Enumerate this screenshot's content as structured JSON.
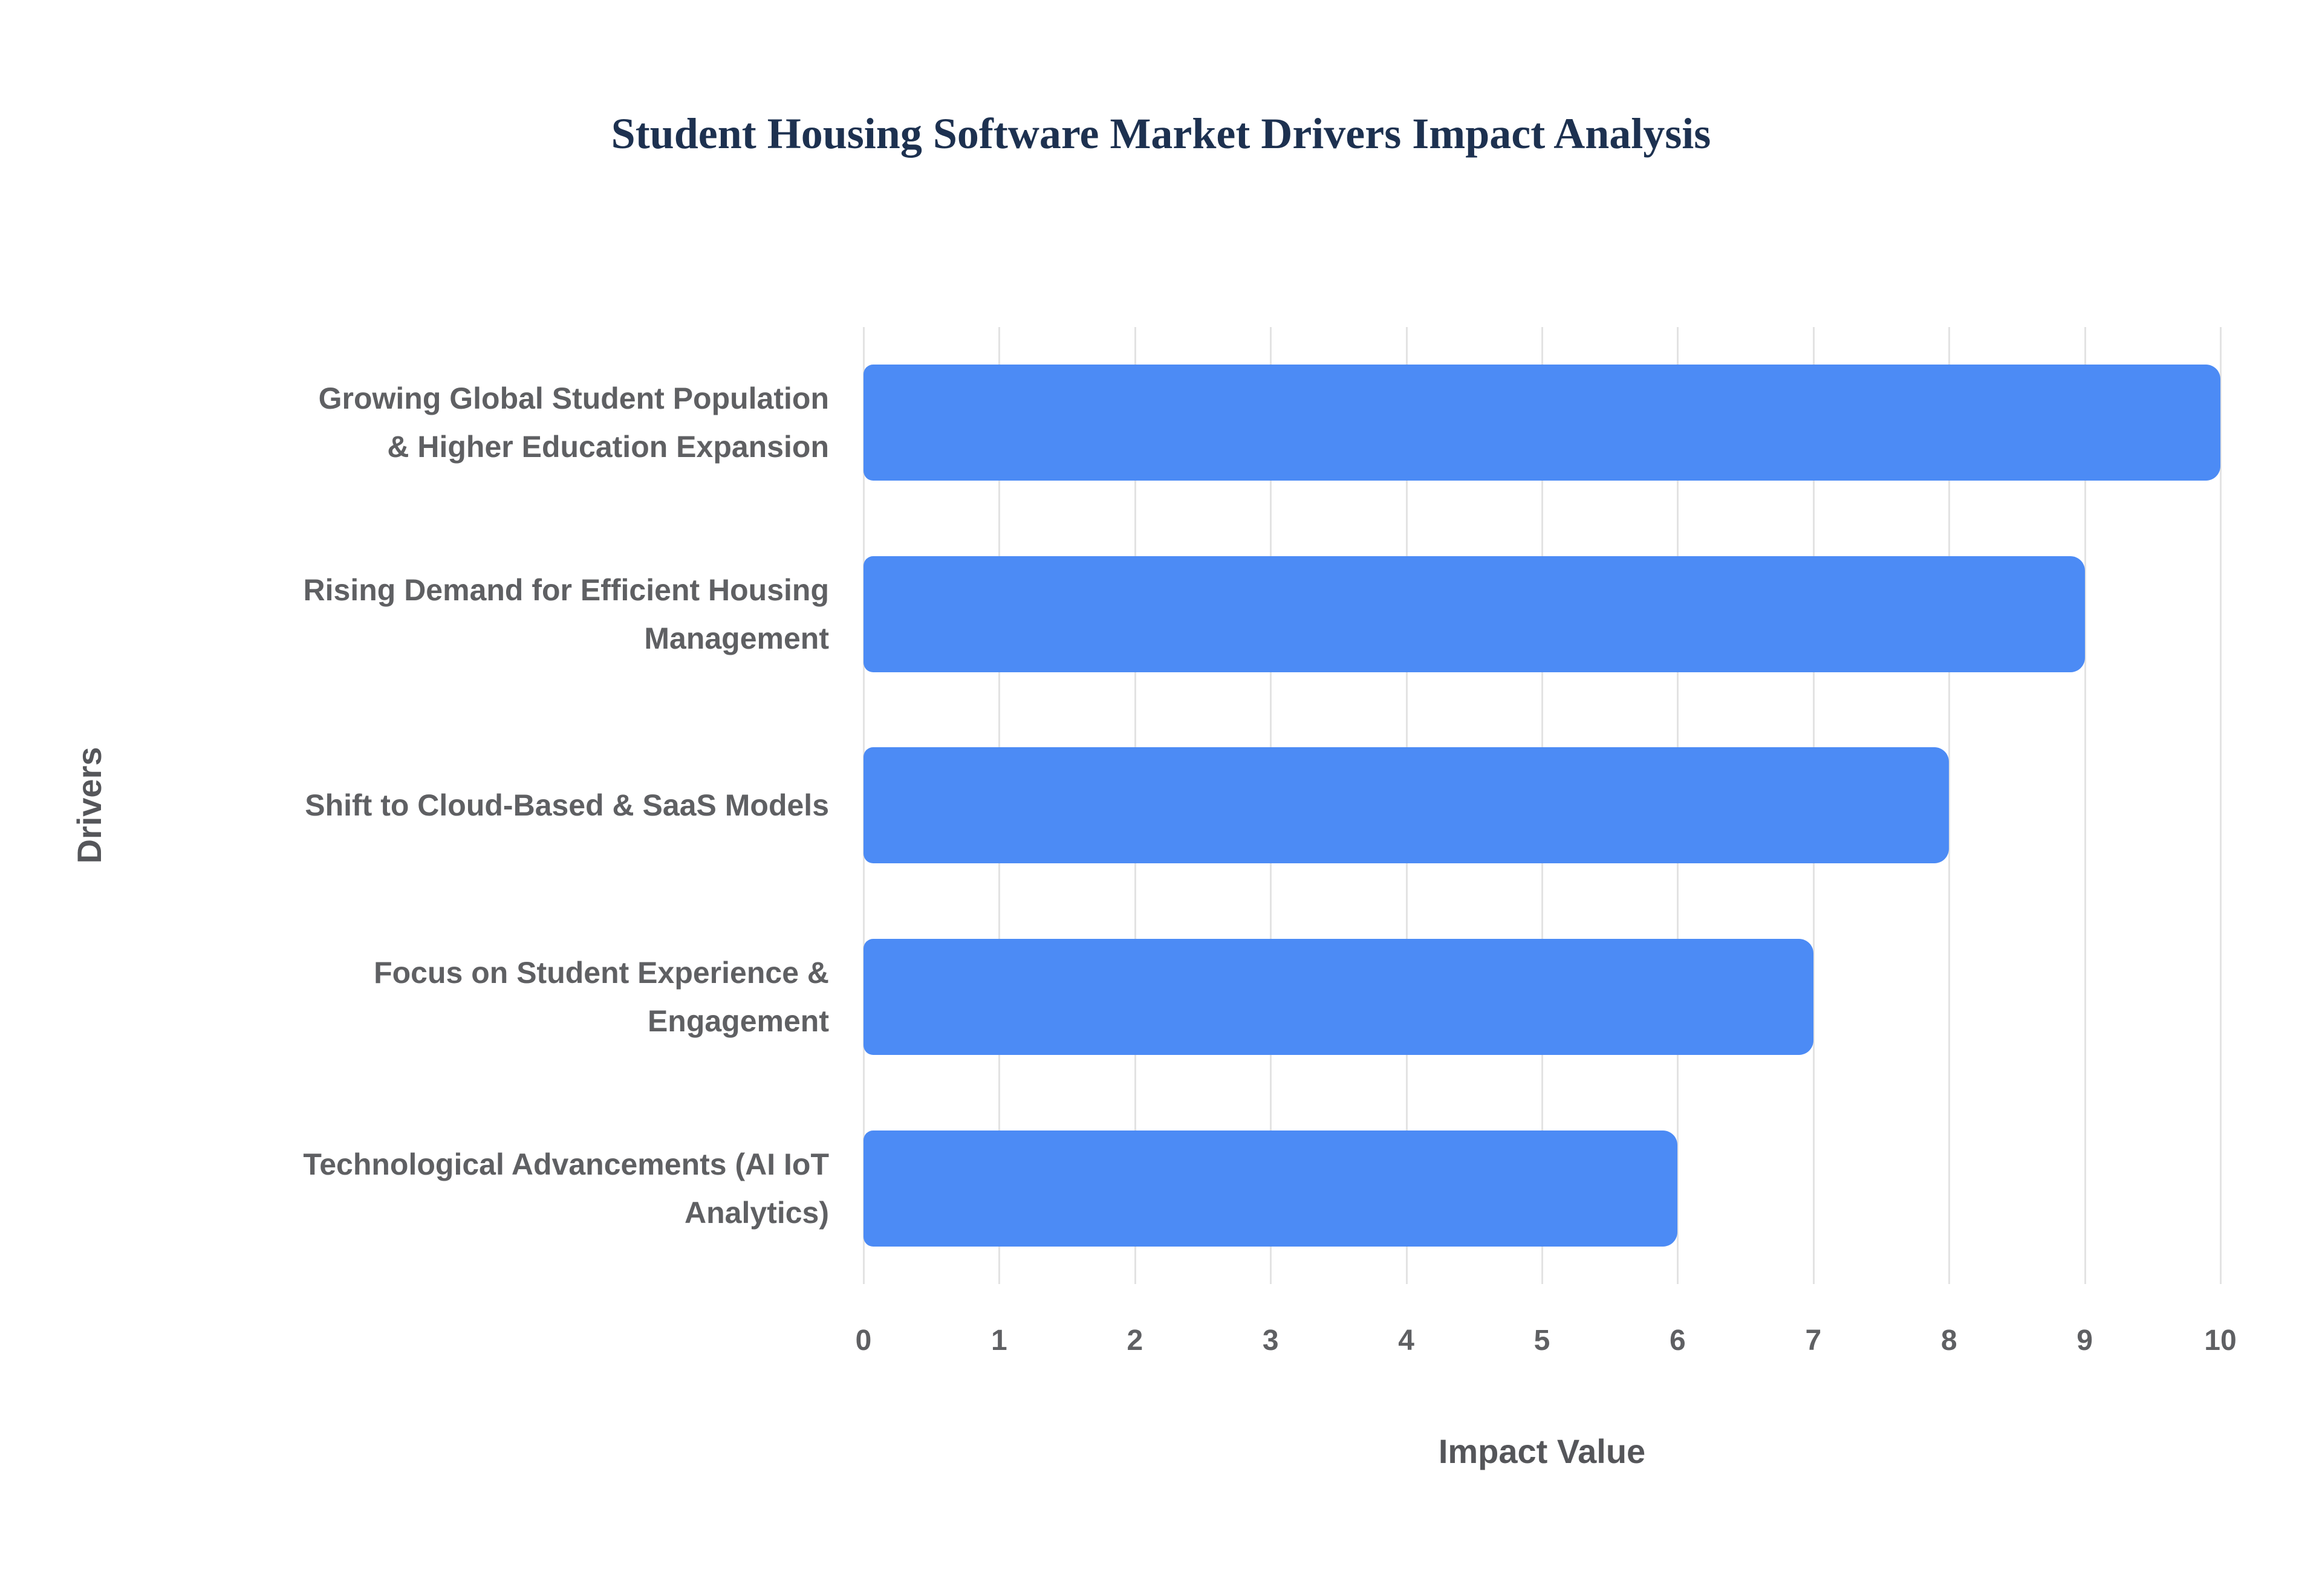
{
  "chart_data": {
    "type": "bar",
    "orientation": "horizontal",
    "title": "Student Housing Software Market Drivers Impact Analysis",
    "categories": [
      "Growing Global Student Population & Higher Education Expansion",
      "Rising Demand for Efficient Housing Management",
      "Shift to Cloud-Based & SaaS Models",
      "Focus on Student Experience & Engagement",
      "Technological Advancements (AI IoT Analytics)"
    ],
    "values": [
      10,
      9,
      8,
      7,
      6
    ],
    "xlabel": "Impact Value",
    "ylabel": "Drivers",
    "xlim": [
      0,
      10
    ],
    "xticks": [
      0,
      1,
      2,
      3,
      4,
      5,
      6,
      7,
      8,
      9,
      10
    ],
    "grid": "vertical-only",
    "legend": "none",
    "bar_color": "#4C8BF5",
    "grid_color": "#e3e3e3",
    "title_color": "#1d3150",
    "label_color": "#5f6063"
  }
}
